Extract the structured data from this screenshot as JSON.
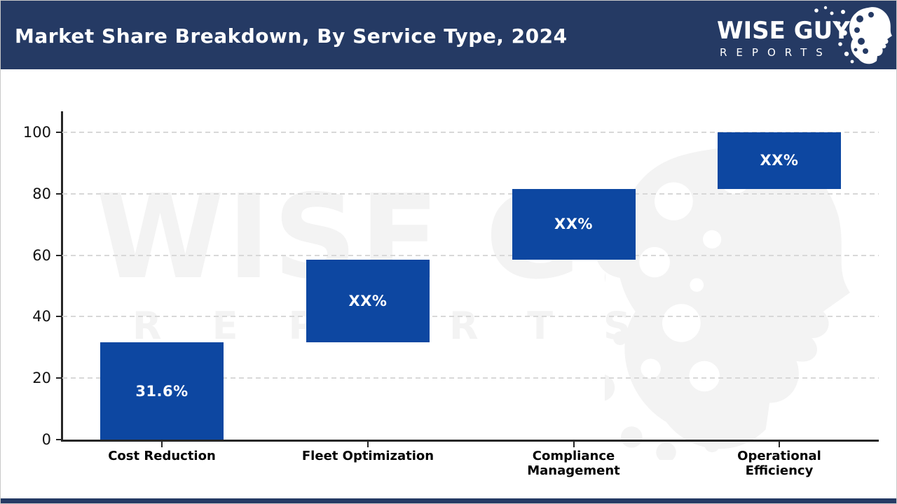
{
  "header": {
    "title": "Market Share Breakdown, By Service Type, 2024",
    "logo": {
      "line1": "WISE GUY",
      "line2": "REPORTS"
    }
  },
  "watermark": {
    "line1": "WISE GUY",
    "line2": "REPORTS"
  },
  "footer": {},
  "chart_data": {
    "type": "bar",
    "subtype": "waterfall",
    "title": "Market Share Breakdown, By Service Type, 2024",
    "xlabel": "",
    "ylabel": "",
    "ylim": [
      0,
      100
    ],
    "yticks": [
      0,
      20,
      40,
      60,
      80,
      100
    ],
    "grid": "horizontal-dashed",
    "legend": "none",
    "categories": [
      "Cost Reduction",
      "Fleet Optimization",
      "Compliance Management",
      "Operational Efficiency"
    ],
    "xticklabels": [
      "Cost Reduction",
      "Fleet Optimization",
      "Compliance\nManagement",
      "Operational\nEfficiency"
    ],
    "segments": [
      {
        "category": "Cost Reduction",
        "start": 0,
        "end": 31.6,
        "label": "31.6%"
      },
      {
        "category": "Fleet Optimization",
        "start": 31.6,
        "end": 58.6,
        "label": "XX%"
      },
      {
        "category": "Compliance Management",
        "start": 58.6,
        "end": 81.6,
        "label": "XX%"
      },
      {
        "category": "Operational Efficiency",
        "start": 81.6,
        "end": 100,
        "label": "XX%"
      }
    ],
    "bar_color": "#0d47a1",
    "bar_label_color": "#ffffff"
  },
  "colors": {
    "header_bg": "#253a64",
    "footer_bg": "#253a64",
    "bar": "#0d47a1",
    "grid": "#d8d8d8",
    "axis": "#262626",
    "watermark": "#f3f3f3"
  }
}
